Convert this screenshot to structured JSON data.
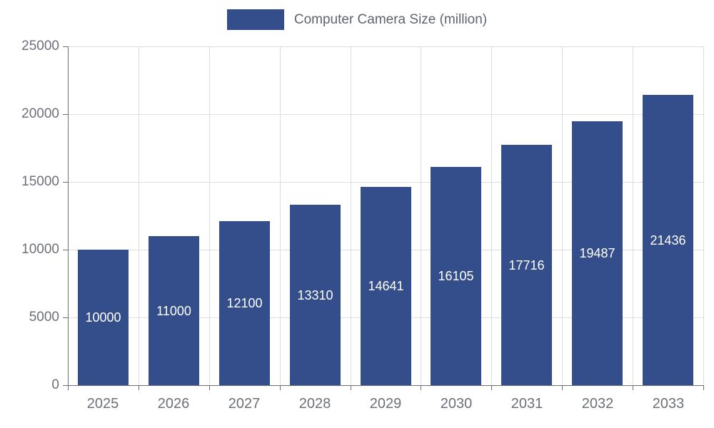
{
  "chart_data": {
    "type": "bar",
    "title": "Computer Camera Size (million)",
    "categories": [
      "2025",
      "2026",
      "2027",
      "2028",
      "2029",
      "2030",
      "2031",
      "2032",
      "2033"
    ],
    "values": [
      10000,
      11000,
      12100,
      13310,
      14641,
      16105,
      17716,
      19487,
      21436
    ],
    "xlabel": "",
    "ylabel": "",
    "ylim": [
      0,
      25000
    ],
    "y_ticks": [
      0,
      5000,
      10000,
      15000,
      20000,
      25000
    ],
    "legend_entries": [
      "Computer Camera Size (million)"
    ],
    "legend_position": "top-center",
    "grid": true,
    "bar_color": "#344e8c",
    "bar_label_color": "#ffffff",
    "axis_text_color": "#6e7079",
    "grid_color": "#dddddd"
  }
}
